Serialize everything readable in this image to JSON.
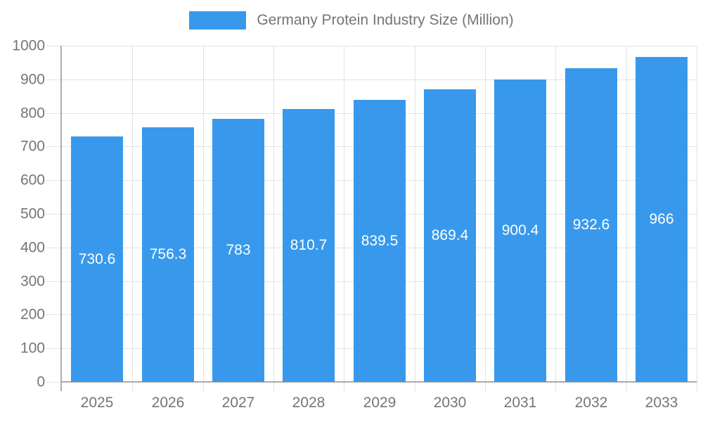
{
  "chart_data": {
    "type": "bar",
    "title": "Germany Protein Industry Size (Million)",
    "categories": [
      "2025",
      "2026",
      "2027",
      "2028",
      "2029",
      "2030",
      "2031",
      "2032",
      "2033"
    ],
    "values": [
      730.6,
      756.3,
      783,
      810.7,
      839.5,
      869.4,
      900.4,
      932.6,
      966
    ],
    "value_labels": [
      "730.6",
      "756.3",
      "783",
      "810.7",
      "839.5",
      "869.4",
      "900.4",
      "932.6",
      "966"
    ],
    "xlabel": "",
    "ylabel": "",
    "ylim": [
      0,
      1000
    ],
    "yticks": [
      0,
      100,
      200,
      300,
      400,
      500,
      600,
      700,
      800,
      900,
      1000
    ],
    "grid": true,
    "legend_position": "top",
    "bar_color": "#3899ec",
    "value_label_color": "#ffffff",
    "axis_text_color": "#757575"
  }
}
